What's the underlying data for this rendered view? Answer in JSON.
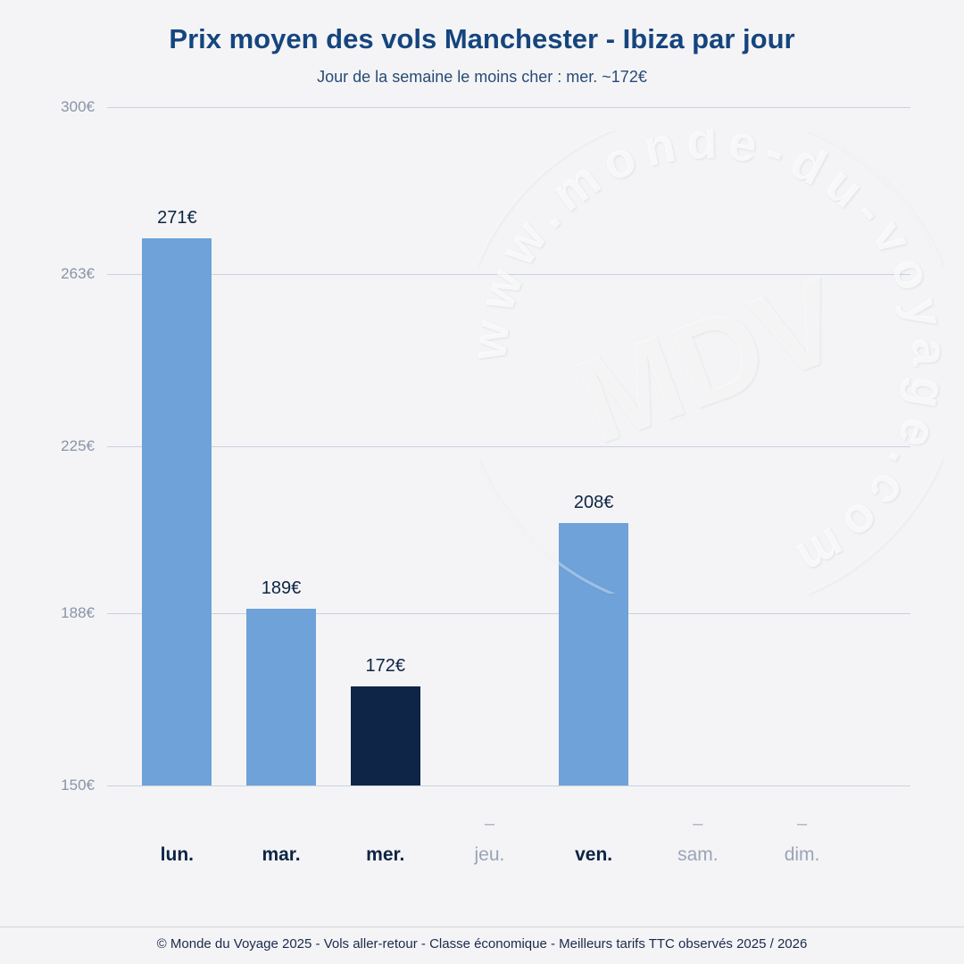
{
  "title": "Prix moyen des vols Manchester - Ibiza par jour",
  "subtitle": "Jour de la semaine le moins cher : mer. ~172€",
  "footer": "© Monde du Voyage 2025 - Vols aller-retour - Classe économique - Meilleurs tarifs TTC observés 2025 / 2026",
  "watermark": {
    "circle_text": "www.monde-du-voyage.com",
    "center_text": "MDV"
  },
  "chart_data": {
    "type": "bar",
    "title": "Prix moyen des vols Manchester - Ibiza par jour",
    "subtitle": "Jour de la semaine le moins cher : mer. ~172€",
    "categories": [
      "lun.",
      "mar.",
      "mer.",
      "jeu.",
      "ven.",
      "sam.",
      "dim."
    ],
    "values": [
      271,
      189,
      172,
      null,
      208,
      null,
      null
    ],
    "value_labels": [
      "271€",
      "189€",
      "172€",
      null,
      "208€",
      null,
      null
    ],
    "highlight_index": 2,
    "no_data_marker": "–",
    "ylim": [
      150,
      300
    ],
    "yticks": [
      300,
      263,
      225,
      188,
      150
    ],
    "ytick_labels": [
      "300€",
      "263€",
      "225€",
      "188€",
      "150€"
    ],
    "grid": true,
    "legend": false,
    "colors": {
      "bar": "#6ea2d9",
      "bar_highlight": "#0e2548",
      "gridline": "#c9d2e0",
      "title": "#15457e",
      "value_label": "#0d2444",
      "day_active": "#0d2444",
      "day_inactive": "#9aa4b8"
    }
  }
}
